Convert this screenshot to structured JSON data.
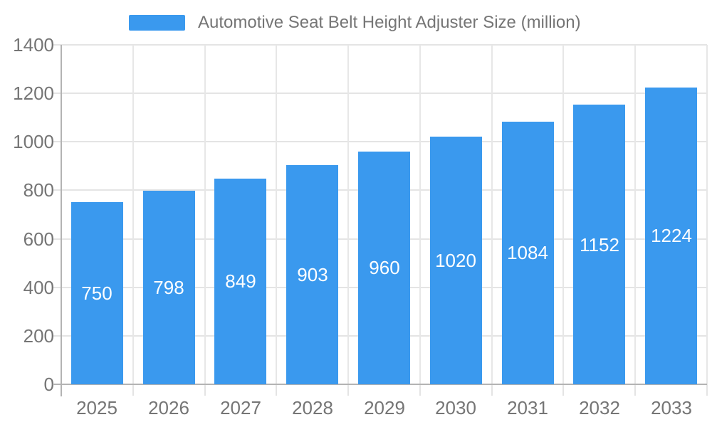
{
  "chart_data": {
    "type": "bar",
    "series_name": "Automotive Seat Belt Height Adjuster Size (million)",
    "categories": [
      "2025",
      "2026",
      "2027",
      "2028",
      "2029",
      "2030",
      "2031",
      "2032",
      "2033"
    ],
    "values": [
      750,
      798,
      849,
      903,
      960,
      1020,
      1084,
      1152,
      1224
    ],
    "ylim": [
      0,
      1400
    ],
    "ytick_step": 200,
    "grid": true,
    "legend_position": "top",
    "value_labels_inside_bars": true
  },
  "colors": {
    "bar": "#3A99EE",
    "value_label": "#ffffff",
    "axis_text": "#757575",
    "axis_line": "#b3b3b3",
    "gridline": "#e4e4e4",
    "background": "#ffffff"
  }
}
